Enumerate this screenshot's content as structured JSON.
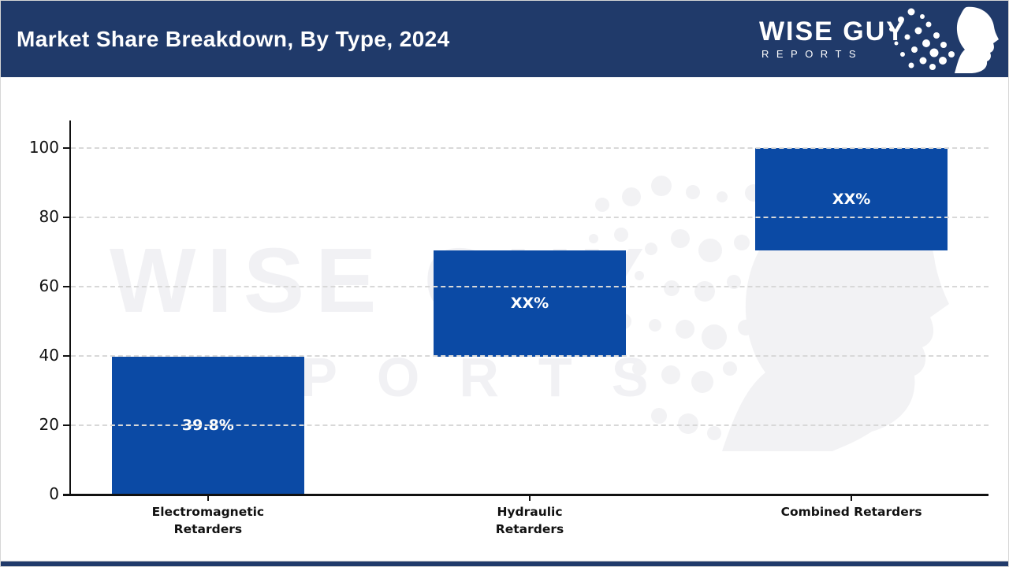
{
  "header": {
    "title": "Market Share Breakdown, By Type, 2024",
    "brand_line1": "WISE GUY",
    "brand_line2": "REPORTS"
  },
  "watermark": {
    "line1": "WISE GUY",
    "line2": "REPORTS"
  },
  "colors": {
    "header_bg": "#203a6a",
    "bar": "#0b4aa5",
    "grid": "#d8d8d8",
    "axis": "#111111",
    "bar_label": "#ffffff",
    "watermark": "#f1f1f4"
  },
  "chart_data": {
    "type": "bar",
    "subtype": "floating-segment-waterfall",
    "title": "Market Share Breakdown, By Type, 2024",
    "categories": [
      "Electromagnetic\nRetarders",
      "Hydraulic\nRetarders",
      "Combined Retarders"
    ],
    "segments": [
      {
        "category": "Electromagnetic Retarders",
        "start": 0,
        "end": 39.8,
        "span": 39.8,
        "label": "39.8%"
      },
      {
        "category": "Hydraulic Retarders",
        "start": 39.8,
        "end": 70.5,
        "span": 30.7,
        "label": "XX%"
      },
      {
        "category": "Combined Retarders",
        "start": 70.5,
        "end": 100,
        "span": 29.5,
        "label": "XX%"
      }
    ],
    "ylim": [
      0,
      100
    ],
    "yticks": [
      0,
      20,
      40,
      60,
      80,
      100
    ],
    "xlabel": "",
    "ylabel": "",
    "grid": "horizontal-dashed-above-bars",
    "legend": "none"
  }
}
